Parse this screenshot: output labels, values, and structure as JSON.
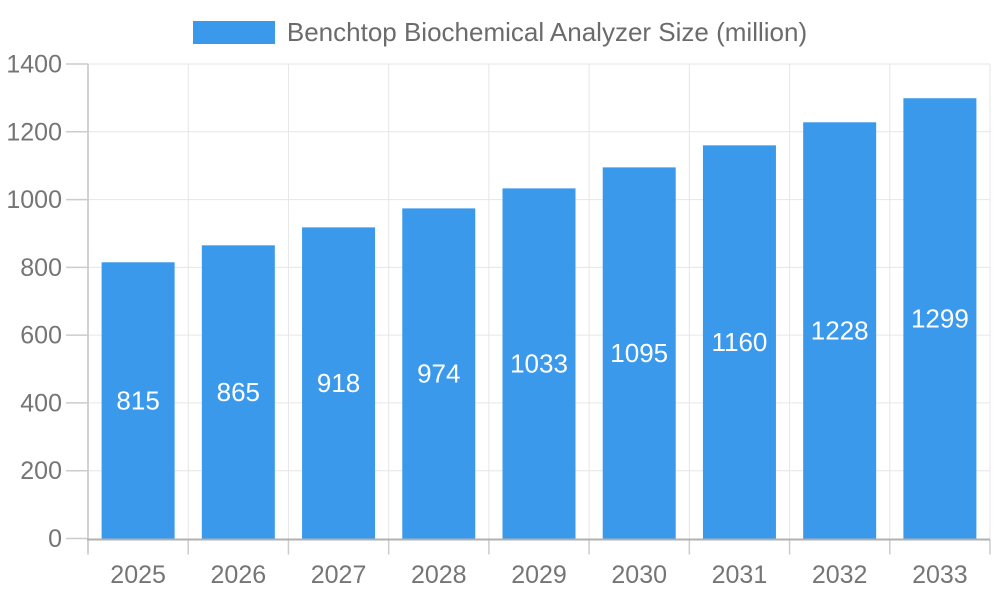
{
  "chart_data": {
    "type": "bar",
    "title": "Benchtop Biochemical Analyzer Size (million)",
    "legend": {
      "label": "Benchtop Biochemical Analyzer Size (million)",
      "position": "top"
    },
    "categories": [
      "2025",
      "2026",
      "2027",
      "2028",
      "2029",
      "2030",
      "2031",
      "2032",
      "2033"
    ],
    "series": [
      {
        "name": "Benchtop Biochemical Analyzer Size (million)",
        "values": [
          815,
          865,
          918,
          974,
          1033,
          1095,
          1160,
          1228,
          1299
        ]
      }
    ],
    "value_labels_position": "inside-center",
    "xlabel": "",
    "ylabel": "",
    "ylim": [
      0,
      1400
    ],
    "yticks": [
      0,
      200,
      400,
      600,
      800,
      1000,
      1200,
      1400
    ],
    "grid": true,
    "colors": {
      "bar": "#3b99ec",
      "bar_value_text": "#ffffff",
      "grid_line": "#e6e6e6",
      "y_axis_line": "#c4c4c4",
      "x_axis_line": "#b0b0b0",
      "tick_mark": "#cccccc",
      "tick_text": "#757575",
      "legend_text": "#6b6b6b",
      "background": "#ffffff"
    }
  }
}
